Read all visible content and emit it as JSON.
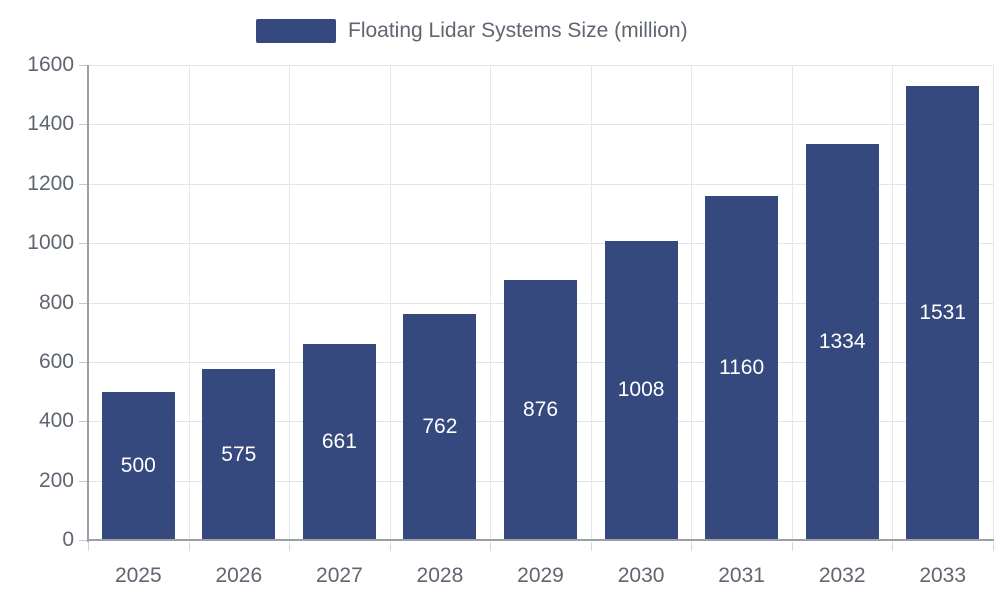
{
  "legend": {
    "label": "Floating Lidar Systems Size (million)",
    "swatch_color": "#35497E"
  },
  "chart_data": {
    "type": "bar",
    "title": "",
    "series_name": "Floating Lidar Systems Size (million)",
    "categories": [
      "2025",
      "2026",
      "2027",
      "2028",
      "2029",
      "2030",
      "2031",
      "2032",
      "2033"
    ],
    "values": [
      500,
      575,
      661,
      762,
      876,
      1008,
      1160,
      1334,
      1531
    ],
    "xlabel": "",
    "ylabel": "",
    "ylim": [
      0,
      1600
    ],
    "ytick_step": 200,
    "yticks": [
      0,
      200,
      400,
      600,
      800,
      1000,
      1200,
      1400,
      1600
    ],
    "grid": true,
    "legend_position": "top",
    "bar_color": "#35497E",
    "bar_label_color": "#ffffff",
    "axis_text_color": "#5f6670"
  }
}
